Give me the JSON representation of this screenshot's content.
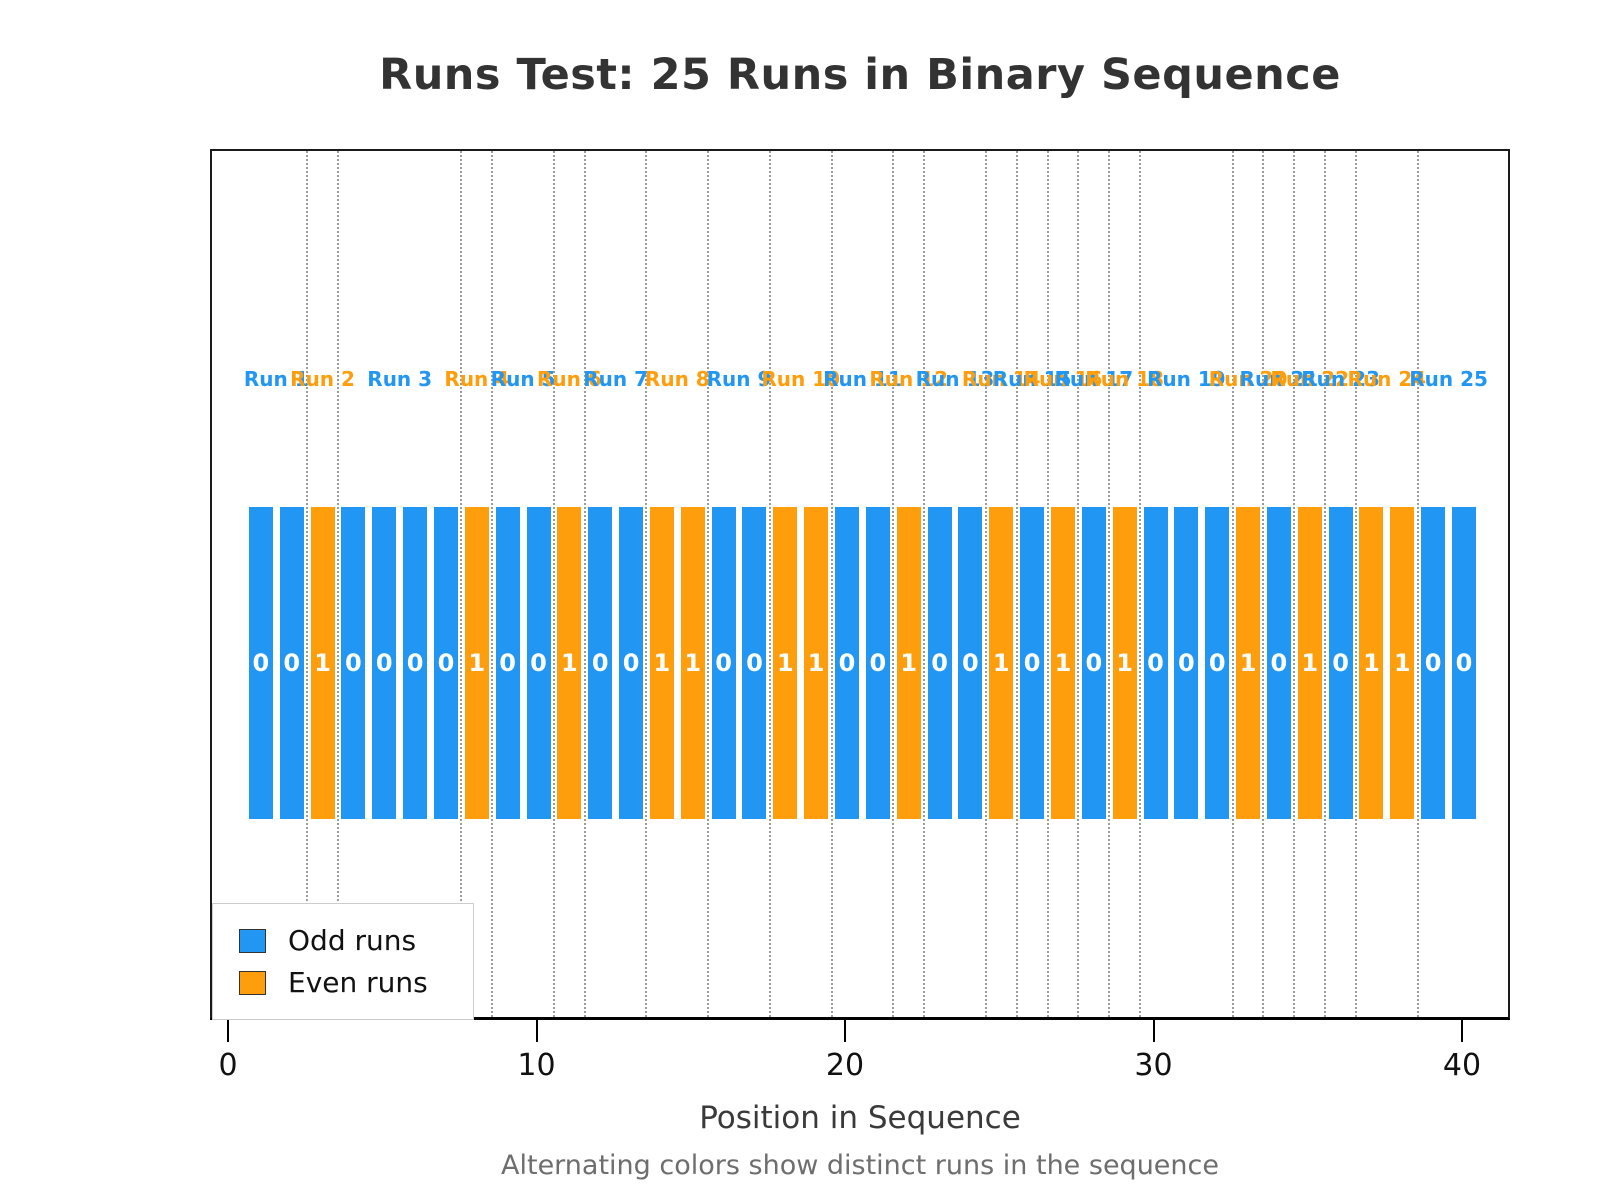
{
  "title": "Runs Test: 25 Runs in Binary Sequence",
  "xlabel": "Position in Sequence",
  "subtitle": "Alternating colors show distinct runs in the sequence",
  "legend": {
    "odd_label": "Odd runs",
    "even_label": "Even runs"
  },
  "colors": {
    "odd_runs": "#2196F3",
    "even_runs": "#FF9E0D",
    "bar_text": "#ffffff",
    "gridline": "#9a9a9a",
    "title_text": "#333333",
    "subtitle_text": "#6e6e6e"
  },
  "chart_data": {
    "type": "bar",
    "xlabel": "Position in Sequence",
    "title": "Runs Test: 25 Runs in Binary Sequence",
    "x_ticks": [
      0,
      10,
      20,
      30,
      40
    ],
    "xlim": [
      0,
      41
    ],
    "n_positions": 40,
    "n_runs": 25,
    "bar_value_height": 1,
    "grid": "vertical dotted lines at run boundaries",
    "legend_position": "lower left",
    "sequence": [
      0,
      0,
      1,
      0,
      0,
      0,
      0,
      1,
      0,
      0,
      1,
      0,
      0,
      1,
      1,
      0,
      0,
      1,
      1,
      0,
      0,
      1,
      0,
      0,
      1,
      0,
      1,
      0,
      1,
      0,
      0,
      0,
      1,
      0,
      1,
      0,
      1,
      1,
      0,
      0
    ],
    "runs": [
      {
        "label": "Run 1",
        "start": 1,
        "end": 2,
        "value": 0,
        "parity": "odd"
      },
      {
        "label": "Run 2",
        "start": 3,
        "end": 3,
        "value": 1,
        "parity": "even"
      },
      {
        "label": "Run 3",
        "start": 4,
        "end": 7,
        "value": 0,
        "parity": "odd"
      },
      {
        "label": "Run 4",
        "start": 8,
        "end": 8,
        "value": 1,
        "parity": "even"
      },
      {
        "label": "Run 5",
        "start": 9,
        "end": 10,
        "value": 0,
        "parity": "odd"
      },
      {
        "label": "Run 6",
        "start": 11,
        "end": 11,
        "value": 1,
        "parity": "even"
      },
      {
        "label": "Run 7",
        "start": 12,
        "end": 13,
        "value": 0,
        "parity": "odd"
      },
      {
        "label": "Run 8",
        "start": 14,
        "end": 15,
        "value": 1,
        "parity": "even"
      },
      {
        "label": "Run 9",
        "start": 16,
        "end": 17,
        "value": 0,
        "parity": "odd"
      },
      {
        "label": "Run 10",
        "start": 18,
        "end": 19,
        "value": 1,
        "parity": "even"
      },
      {
        "label": "Run 11",
        "start": 20,
        "end": 21,
        "value": 0,
        "parity": "odd"
      },
      {
        "label": "Run 12",
        "start": 22,
        "end": 22,
        "value": 1,
        "parity": "even"
      },
      {
        "label": "Run 13",
        "start": 23,
        "end": 24,
        "value": 0,
        "parity": "odd"
      },
      {
        "label": "Run 14",
        "start": 25,
        "end": 25,
        "value": 1,
        "parity": "even"
      },
      {
        "label": "Run 15",
        "start": 26,
        "end": 26,
        "value": 0,
        "parity": "odd"
      },
      {
        "label": "Run 16",
        "start": 27,
        "end": 27,
        "value": 1,
        "parity": "even"
      },
      {
        "label": "Run 17",
        "start": 28,
        "end": 28,
        "value": 0,
        "parity": "odd"
      },
      {
        "label": "Run 18",
        "start": 29,
        "end": 29,
        "value": 1,
        "parity": "even"
      },
      {
        "label": "Run 19",
        "start": 30,
        "end": 32,
        "value": 0,
        "parity": "odd"
      },
      {
        "label": "Run 20",
        "start": 33,
        "end": 33,
        "value": 1,
        "parity": "even"
      },
      {
        "label": "Run 21",
        "start": 34,
        "end": 34,
        "value": 0,
        "parity": "odd"
      },
      {
        "label": "Run 22",
        "start": 35,
        "end": 35,
        "value": 1,
        "parity": "even"
      },
      {
        "label": "Run 23",
        "start": 36,
        "end": 36,
        "value": 0,
        "parity": "odd"
      },
      {
        "label": "Run 24",
        "start": 37,
        "end": 38,
        "value": 1,
        "parity": "even"
      },
      {
        "label": "Run 25",
        "start": 39,
        "end": 40,
        "value": 0,
        "parity": "odd"
      }
    ]
  }
}
